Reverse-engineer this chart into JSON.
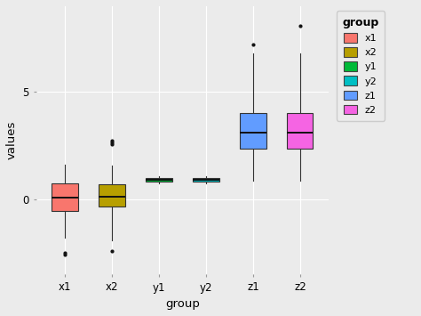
{
  "groups": [
    "x1",
    "x2",
    "y1",
    "y2",
    "z1",
    "z2"
  ],
  "colors": {
    "x1": "#F8766D",
    "x2": "#B79F00",
    "y1": "#00BA38",
    "y2": "#00BFC4",
    "z1": "#619CFF",
    "z2": "#F564E3"
  },
  "box_data": {
    "x1": {
      "whislo": -1.8,
      "q1": -0.55,
      "med": 0.07,
      "q3": 0.75,
      "whishi": 1.6,
      "fliers": [
        -2.5,
        -2.6
      ]
    },
    "x2": {
      "whislo": -1.9,
      "q1": -0.35,
      "med": 0.12,
      "q3": 0.7,
      "whishi": 1.55,
      "fliers": [
        2.55,
        2.65,
        2.75,
        -2.4
      ]
    },
    "y1": {
      "whislo": 0.72,
      "q1": 0.82,
      "med": 0.9,
      "q3": 0.98,
      "whishi": 1.08,
      "fliers": []
    },
    "y2": {
      "whislo": 0.72,
      "q1": 0.82,
      "med": 0.9,
      "q3": 0.98,
      "whishi": 1.08,
      "fliers": []
    },
    "z1": {
      "whislo": 0.85,
      "q1": 2.35,
      "med": 3.1,
      "q3": 4.0,
      "whishi": 6.8,
      "fliers": [
        7.2
      ]
    },
    "z2": {
      "whislo": 0.85,
      "q1": 2.35,
      "med": 3.1,
      "q3": 4.0,
      "whishi": 6.8,
      "fliers": [
        8.1
      ]
    }
  },
  "xlabel": "group",
  "ylabel": "values",
  "legend_title": "group",
  "bg_color": "#EBEBEB",
  "grid_color": "#FFFFFF",
  "ylim": [
    -3.5,
    9.0
  ],
  "yticks": [
    0,
    5
  ],
  "ytick_labels": [
    "0",
    "5"
  ],
  "box_width": 0.55,
  "figsize": [
    4.74,
    3.55
  ],
  "dpi": 100
}
